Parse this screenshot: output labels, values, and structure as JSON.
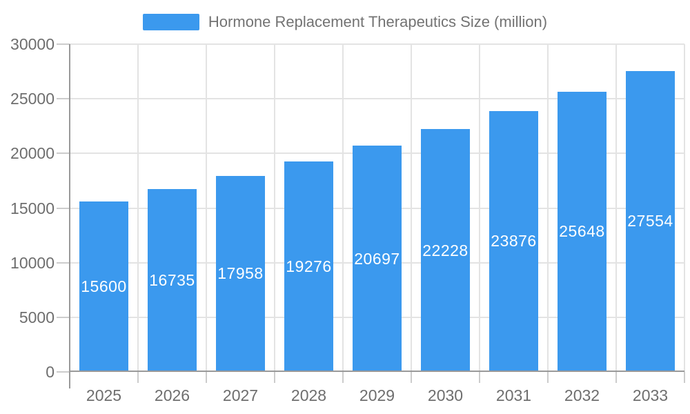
{
  "legend": {
    "label": "Hormone Replacement Therapeutics Size (million)"
  },
  "chart_data": {
    "type": "bar",
    "title": "Hormone Replacement Therapeutics Size (million)",
    "categories": [
      "2025",
      "2026",
      "2027",
      "2028",
      "2029",
      "2030",
      "2031",
      "2032",
      "2033"
    ],
    "values": [
      15600,
      16735,
      17958,
      19276,
      20697,
      22228,
      23876,
      25648,
      27554
    ],
    "xlabel": "",
    "ylabel": "",
    "ylim": [
      0,
      30000
    ],
    "yticks": [
      0,
      5000,
      10000,
      15000,
      20000,
      25000,
      30000
    ],
    "grid": true,
    "legend_position": "top-center",
    "bar_value_label_position": "inside-center",
    "colors": {
      "bar": "#3B99EE",
      "grid": "#E3E3E3",
      "axis": "#999999",
      "tick": "#CCCCCC",
      "axis_text": "#6E6E6E",
      "legend_text": "#737373",
      "bar_label_text": "#FFFFFF",
      "background": "#FFFFFF"
    }
  }
}
